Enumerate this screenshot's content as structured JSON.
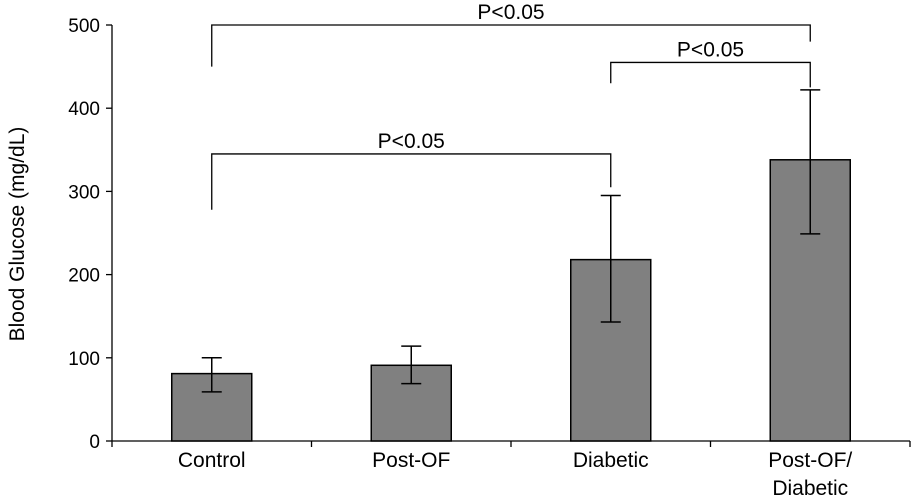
{
  "chart_data": {
    "type": "bar",
    "title": "",
    "xlabel": "",
    "ylabel": "Blood Glucose (mg/dL)",
    "ylim": [
      0,
      500
    ],
    "yticks": [
      0,
      100,
      200,
      300,
      400,
      500
    ],
    "categories": [
      [
        "Control"
      ],
      [
        "Post-OF"
      ],
      [
        "Diabetic"
      ],
      [
        "Post-OF/",
        "Diabetic"
      ]
    ],
    "values": [
      81,
      91,
      218,
      338
    ],
    "error_upper": [
      100,
      114,
      295,
      422
    ],
    "error_lower": [
      59,
      69,
      143,
      249
    ],
    "bar_color": "#808080",
    "significance": [
      {
        "from": 0,
        "to": 3,
        "label": "P<0.05",
        "y": 500,
        "drop_left": 450,
        "drop_right": 480
      },
      {
        "from": 2,
        "to": 3,
        "label": "P<0.05",
        "y": 455,
        "drop_left": 430,
        "drop_right": 425
      },
      {
        "from": 0,
        "to": 2,
        "label": "P<0.05",
        "y": 345,
        "drop_left": 278,
        "drop_right": 305
      }
    ]
  }
}
